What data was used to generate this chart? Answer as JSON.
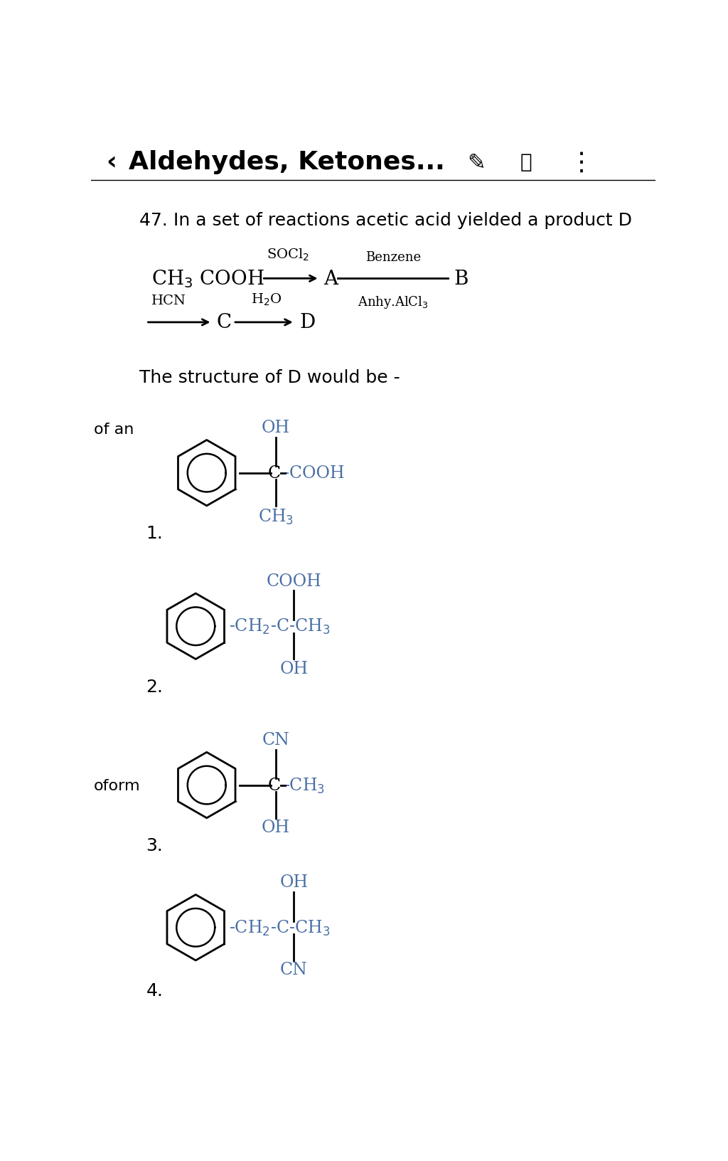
{
  "bg_color": "#ffffff",
  "text_color": "#000000",
  "blue_color": "#4a6fa5",
  "title": "Aldehydes, Ketones...",
  "question": "47. In a set of reactions acetic acid yielded a product D",
  "struct_q": "The structure of D would be -",
  "of_an": "of an",
  "oform": "oform",
  "fig_width": 10.24,
  "fig_height": 16.33,
  "dpi": 100
}
